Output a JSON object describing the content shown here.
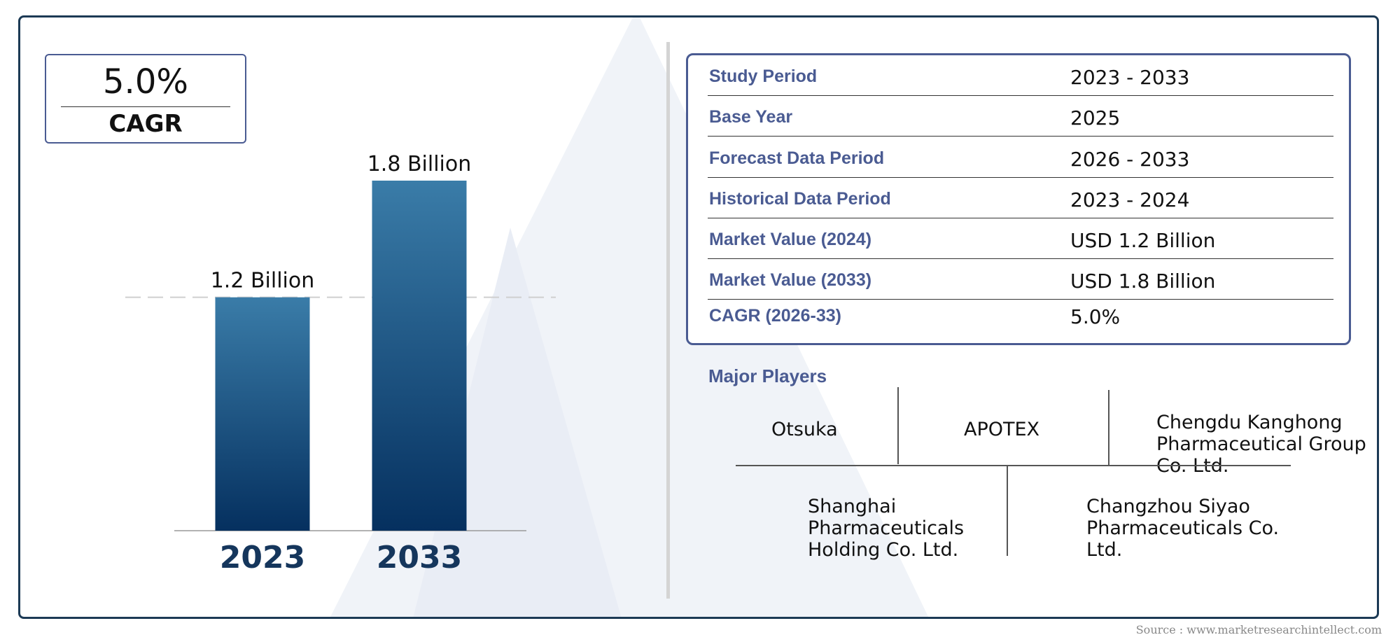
{
  "cagr_box": {
    "value": "5.0%",
    "label": "CAGR"
  },
  "chart_data": {
    "type": "bar",
    "categories": [
      "2023",
      "2033"
    ],
    "values": [
      1.2,
      1.8
    ],
    "value_labels": [
      "1.2 Billion",
      "1.8 Billion"
    ],
    "title": "",
    "xlabel": "",
    "ylabel": "",
    "ylim": [
      0,
      1.8
    ],
    "grid": false,
    "reference_line_at": 1.2,
    "bar_color_top": "#3a7ca8",
    "bar_color_bottom": "#05305f",
    "category_label_color": "#15365c"
  },
  "info_table": [
    {
      "label": "Study Period",
      "value": "2023 - 2033"
    },
    {
      "label": "Base Year",
      "value": "2025"
    },
    {
      "label": "Forecast Data Period",
      "value": "2026 - 2033"
    },
    {
      "label": "Historical Data Period",
      "value": "2023 - 2024"
    },
    {
      "label": "Market Value (2024)",
      "value": "USD 1.2 Billion"
    },
    {
      "label": "Market Value (2033)",
      "value": "USD 1.8 Billion"
    },
    {
      "label": "CAGR (2026-33)",
      "value": "5.0%"
    }
  ],
  "major_players": {
    "title": "Major Players",
    "top": [
      {
        "name": "Otsuka"
      },
      {
        "name": "APOTEX"
      },
      {
        "name": "Chengdu Kanghong Pharmaceutical Group Co. Ltd."
      }
    ],
    "bottom": [
      {
        "name": "Shanghai Pharmaceuticals Holding Co. Ltd."
      },
      {
        "name": "Changzhou Siyao Pharmaceuticals Co. Ltd."
      }
    ]
  },
  "source": "Source : www.marketresearchintellect.com",
  "colors": {
    "frame": "#1c3a55",
    "accent": "#4a5b92",
    "watermark": "#eef1f7"
  }
}
